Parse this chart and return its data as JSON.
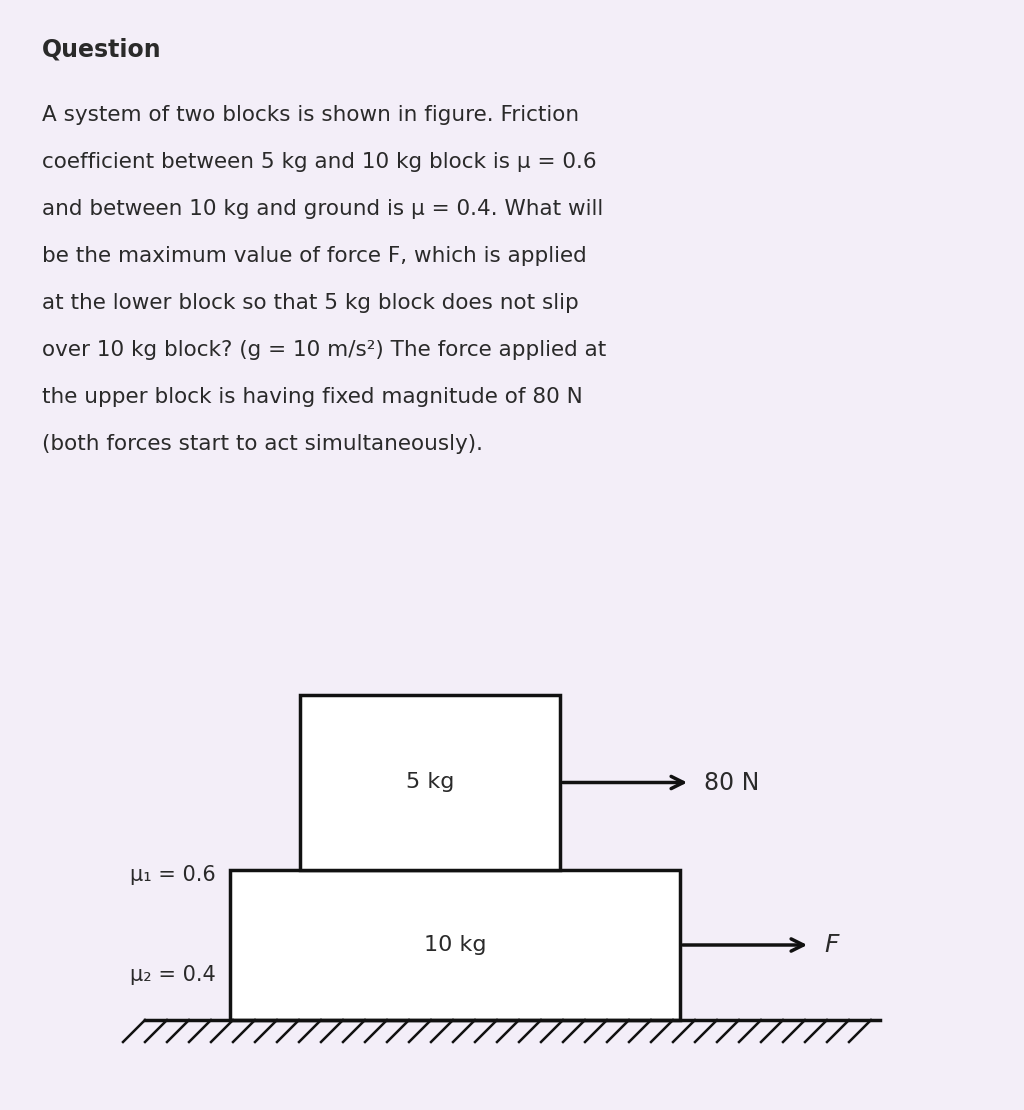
{
  "bg_color": "#f3eef8",
  "text_color": "#2a2a2a",
  "title": "Question",
  "lines": [
    "A system of two blocks is shown in figure. Friction",
    "coefficient between 5 kg and 10 kg block is μ = 0.6",
    "and between 10 kg and ground is μ = 0.4. What will",
    "be the maximum value of force F, which is applied",
    "at the lower block so that 5 kg block does not slip",
    "over 10 kg block? (g = 10 m/s²) The force applied at",
    "the upper block is having fixed magnitude of 80 N",
    "(both forces start to act simultaneously)."
  ],
  "mu1_label": "μ₁ = 0.6",
  "mu2_label": "μ₂ = 0.4",
  "upper_block_label": "5 kg",
  "lower_block_label": "10 kg",
  "upper_force_label": "80 N",
  "lower_force_label": "F",
  "block_color": "#ffffff",
  "block_edge_color": "#111111",
  "arrow_color": "#111111",
  "ground_color": "#111111",
  "font_size_title": 17,
  "font_size_body": 15.5,
  "font_size_diagram": 16,
  "font_size_mu": 15,
  "font_size_force": 17
}
